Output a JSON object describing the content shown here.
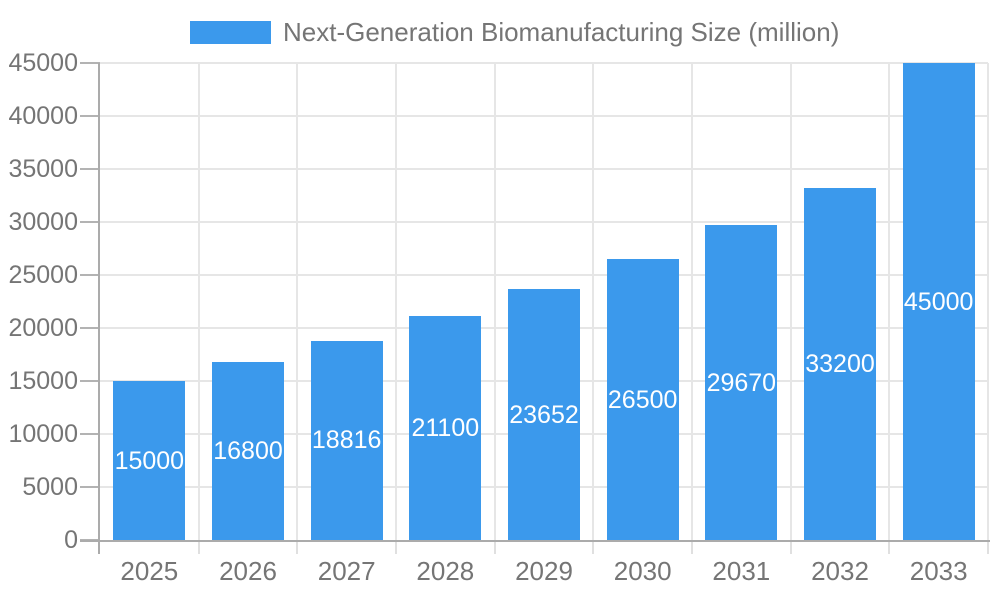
{
  "legend": {
    "label": "Next-Generation Biomanufacturing Size (million)",
    "swatch_color": "#3B99EC"
  },
  "chart_data": {
    "type": "bar",
    "title": "Next-Generation Biomanufacturing Size (million)",
    "categories": [
      "2025",
      "2026",
      "2027",
      "2028",
      "2029",
      "2030",
      "2031",
      "2032",
      "2033"
    ],
    "values": [
      15000,
      16800,
      18816,
      21100,
      23652,
      26500,
      29670,
      33200,
      45000
    ],
    "series": [
      {
        "name": "Next-Generation Biomanufacturing Size (million)",
        "values": [
          15000,
          16800,
          18816,
          21100,
          23652,
          26500,
          29670,
          33200,
          45000
        ]
      }
    ],
    "xlabel": "",
    "ylabel": "",
    "ylim": [
      0,
      45000
    ],
    "yticks": [
      0,
      5000,
      10000,
      15000,
      20000,
      25000,
      30000,
      35000,
      40000,
      45000
    ],
    "grid": true,
    "legend_position": "top",
    "value_labels": "inside-center",
    "colors": {
      "bar": "#3B99EC",
      "bar_value_label": "#FFFFFF",
      "axis_text": "#757575",
      "grid_line": "#E6E6E6",
      "axis_line": "#ABABAB",
      "y_tick": "#B3B3B3",
      "x_boundary_tick": "#E0E0E0"
    }
  }
}
